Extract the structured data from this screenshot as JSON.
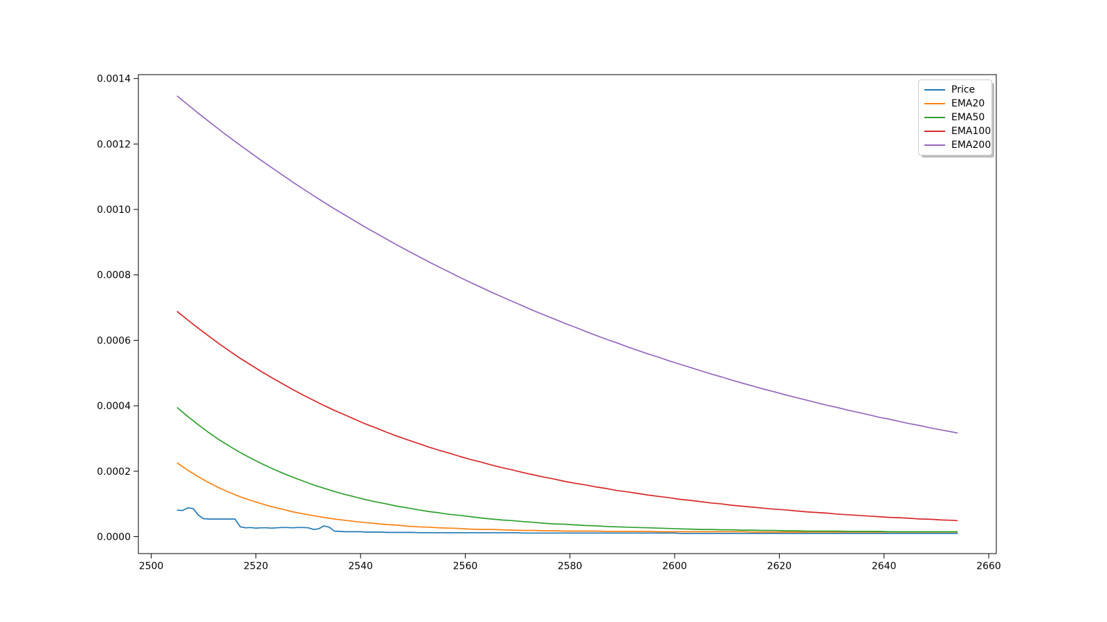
{
  "figure": {
    "background": "#ffffff"
  },
  "chart_data": {
    "type": "line",
    "title": "",
    "xlabel": "",
    "ylabel": "",
    "grid": false,
    "xlim": [
      2497.55,
      2661.45
    ],
    "ylim": [
      -5.17e-05,
      0.0014119
    ],
    "x_tick_values": [
      2500,
      2520,
      2540,
      2560,
      2580,
      2600,
      2620,
      2640,
      2660
    ],
    "x_tick_labels": [
      "2500",
      "2520",
      "2540",
      "2560",
      "2580",
      "2600",
      "2620",
      "2640",
      "2660"
    ],
    "y_tick_values": [
      0.0,
      0.0002,
      0.0004,
      0.0006,
      0.0008,
      0.001,
      0.0012,
      0.0014
    ],
    "y_tick_labels": [
      "0.0000",
      "0.0002",
      "0.0004",
      "0.0006",
      "0.0008",
      "0.0010",
      "0.0012",
      "0.0014"
    ],
    "legend": {
      "position": "upper right",
      "entries": [
        "Price",
        "EMA20",
        "EMA50",
        "EMA100",
        "EMA200"
      ]
    },
    "y_scale": 1e-06,
    "series": [
      {
        "name": "Price",
        "color": "#1f77b4",
        "x": [
          2505,
          2506,
          2507,
          2508,
          2509,
          2510,
          2511,
          2512,
          2513,
          2514,
          2515,
          2516,
          2517,
          2518,
          2519,
          2520,
          2521,
          2522,
          2523,
          2524,
          2525,
          2526,
          2527,
          2528,
          2529,
          2530,
          2531,
          2532,
          2533,
          2534,
          2535,
          2536,
          2537,
          2538,
          2539,
          2540,
          2541,
          2542,
          2543,
          2544,
          2545,
          2546,
          2547,
          2548,
          2549,
          2550,
          2551,
          2552,
          2553,
          2554,
          2555,
          2556,
          2557,
          2558,
          2559,
          2560,
          2561,
          2562,
          2563,
          2564,
          2565,
          2566,
          2567,
          2568,
          2569,
          2570,
          2571,
          2572,
          2573,
          2574,
          2575,
          2576,
          2577,
          2578,
          2579,
          2580,
          2581,
          2582,
          2583,
          2584,
          2585,
          2586,
          2587,
          2588,
          2589,
          2590,
          2591,
          2592,
          2593,
          2594,
          2595,
          2596,
          2597,
          2598,
          2599,
          2600,
          2601,
          2602,
          2603,
          2604,
          2605,
          2606,
          2607,
          2608,
          2609,
          2610,
          2611,
          2612,
          2613,
          2614,
          2615,
          2616,
          2617,
          2618,
          2619,
          2620,
          2621,
          2622,
          2623,
          2624,
          2625,
          2626,
          2627,
          2628,
          2629,
          2630,
          2631,
          2632,
          2633,
          2634,
          2635,
          2636,
          2637,
          2638,
          2639,
          2640,
          2641,
          2642,
          2643,
          2644,
          2645,
          2646,
          2647,
          2648,
          2649,
          2650,
          2651,
          2652,
          2653,
          2654
        ],
        "values_micro": [
          81,
          80,
          88,
          86,
          66,
          55,
          54,
          54,
          54,
          54,
          54,
          54,
          30,
          27,
          28,
          26,
          27,
          27,
          26,
          27,
          28,
          28,
          27,
          28,
          28,
          27,
          22,
          24,
          33,
          29,
          17,
          16,
          15,
          15,
          15,
          15,
          14,
          14,
          14,
          14,
          13,
          13,
          13,
          13,
          13,
          13,
          12,
          12,
          12,
          12,
          12,
          12,
          12,
          12,
          12,
          12,
          12,
          12,
          12,
          12,
          12,
          12,
          12,
          12,
          12,
          12,
          11,
          11,
          11,
          11,
          11,
          11,
          11,
          11,
          11,
          11,
          11,
          11,
          11,
          11,
          11,
          11,
          11,
          11,
          11,
          11,
          11,
          11,
          11,
          11,
          11,
          11,
          11,
          11,
          11,
          11,
          10,
          10,
          10,
          10,
          10,
          10,
          10,
          10,
          10,
          10,
          10,
          10,
          10,
          10,
          10,
          10,
          10,
          10,
          10,
          10,
          10,
          10,
          10,
          10,
          10,
          10,
          10,
          10,
          10,
          10,
          10,
          10,
          10,
          10,
          10,
          10,
          10,
          10,
          10,
          10,
          10,
          10,
          10,
          10,
          10,
          10,
          10,
          10,
          10,
          10,
          10,
          10,
          10,
          10
        ]
      },
      {
        "name": "EMA20",
        "color": "#ff7f0e",
        "x": [
          2505,
          2507,
          2509,
          2511,
          2513,
          2515,
          2517,
          2519,
          2521,
          2523,
          2525,
          2527,
          2529,
          2531,
          2533,
          2535,
          2537,
          2539,
          2541,
          2543,
          2545,
          2547,
          2549,
          2551,
          2553,
          2555,
          2557,
          2559,
          2561,
          2563,
          2565,
          2567,
          2569,
          2571,
          2573,
          2575,
          2577,
          2579,
          2581,
          2583,
          2585,
          2587,
          2589,
          2591,
          2593,
          2595,
          2597,
          2599,
          2601,
          2603,
          2605,
          2607,
          2609,
          2611,
          2613,
          2615,
          2617,
          2619,
          2621,
          2623,
          2625,
          2627,
          2629,
          2631,
          2633,
          2635,
          2637,
          2639,
          2641,
          2643,
          2645,
          2647,
          2649,
          2651,
          2653,
          2654
        ],
        "values_micro": [
          225,
          203,
          183,
          165,
          149,
          135,
          122,
          111,
          101,
          92,
          84,
          76,
          70,
          64,
          59,
          54,
          50,
          46,
          43,
          40,
          37,
          35,
          32,
          30,
          29,
          27,
          26,
          25,
          23,
          22,
          22,
          21,
          20,
          19,
          19,
          18,
          18,
          17,
          17,
          17,
          17,
          16,
          16,
          16,
          16,
          16,
          15,
          15,
          15,
          15,
          15,
          15,
          15,
          15,
          15,
          14,
          14,
          14,
          14,
          14,
          14,
          14,
          14,
          14,
          14,
          14,
          14,
          14,
          14,
          14,
          14,
          14,
          14,
          14,
          14,
          14
        ]
      },
      {
        "name": "EMA50",
        "color": "#2ca02c",
        "x": [
          2505,
          2507,
          2509,
          2511,
          2513,
          2515,
          2517,
          2519,
          2521,
          2523,
          2525,
          2527,
          2529,
          2531,
          2533,
          2535,
          2537,
          2539,
          2541,
          2543,
          2545,
          2547,
          2549,
          2551,
          2553,
          2555,
          2557,
          2559,
          2561,
          2563,
          2565,
          2567,
          2569,
          2571,
          2573,
          2575,
          2577,
          2579,
          2581,
          2583,
          2585,
          2587,
          2589,
          2591,
          2593,
          2595,
          2597,
          2599,
          2601,
          2603,
          2605,
          2607,
          2609,
          2611,
          2613,
          2615,
          2617,
          2619,
          2621,
          2623,
          2625,
          2627,
          2629,
          2631,
          2633,
          2635,
          2637,
          2639,
          2641,
          2643,
          2645,
          2647,
          2649,
          2651,
          2653,
          2654
        ],
        "values_micro": [
          394,
          367,
          342,
          318,
          296,
          276,
          257,
          240,
          224,
          209,
          195,
          182,
          170,
          158,
          148,
          138,
          129,
          121,
          113,
          106,
          100,
          93,
          88,
          82,
          77,
          73,
          68,
          65,
          61,
          57,
          54,
          51,
          49,
          46,
          44,
          41,
          39,
          38,
          36,
          34,
          33,
          31,
          30,
          29,
          28,
          27,
          26,
          25,
          24,
          23,
          22,
          22,
          21,
          21,
          20,
          20,
          19,
          19,
          18,
          18,
          17,
          17,
          17,
          17,
          16,
          16,
          16,
          16,
          15,
          15,
          15,
          15,
          15,
          15,
          15,
          15
        ]
      },
      {
        "name": "EMA100",
        "color": "#d62728",
        "x": [
          2505,
          2507,
          2509,
          2511,
          2513,
          2515,
          2517,
          2519,
          2521,
          2523,
          2525,
          2527,
          2529,
          2531,
          2533,
          2535,
          2537,
          2539,
          2541,
          2543,
          2545,
          2547,
          2549,
          2551,
          2553,
          2555,
          2557,
          2559,
          2561,
          2563,
          2565,
          2567,
          2569,
          2571,
          2573,
          2575,
          2577,
          2579,
          2581,
          2583,
          2585,
          2587,
          2589,
          2591,
          2593,
          2595,
          2597,
          2599,
          2601,
          2603,
          2605,
          2607,
          2609,
          2611,
          2613,
          2615,
          2617,
          2619,
          2621,
          2623,
          2625,
          2627,
          2629,
          2631,
          2633,
          2635,
          2637,
          2639,
          2641,
          2643,
          2645,
          2647,
          2649,
          2651,
          2653,
          2654
        ],
        "values_micro": [
          688,
          662,
          637,
          613,
          589,
          567,
          545,
          525,
          505,
          486,
          468,
          450,
          433,
          417,
          401,
          386,
          372,
          358,
          344,
          332,
          319,
          307,
          296,
          285,
          274,
          264,
          255,
          245,
          236,
          228,
          219,
          211,
          204,
          196,
          189,
          182,
          176,
          169,
          163,
          158,
          152,
          147,
          141,
          137,
          132,
          127,
          123,
          119,
          114,
          111,
          107,
          103,
          100,
          96,
          93,
          90,
          87,
          84,
          82,
          79,
          76,
          74,
          72,
          69,
          67,
          65,
          63,
          61,
          59,
          58,
          56,
          54,
          53,
          51,
          50,
          49
        ]
      },
      {
        "name": "EMA200",
        "color": "#9467bd",
        "x": [
          2505,
          2507,
          2509,
          2511,
          2513,
          2515,
          2517,
          2519,
          2521,
          2523,
          2525,
          2527,
          2529,
          2531,
          2533,
          2535,
          2537,
          2539,
          2541,
          2543,
          2545,
          2547,
          2549,
          2551,
          2553,
          2555,
          2557,
          2559,
          2561,
          2563,
          2565,
          2567,
          2569,
          2571,
          2573,
          2575,
          2577,
          2579,
          2581,
          2583,
          2585,
          2587,
          2589,
          2591,
          2593,
          2595,
          2597,
          2599,
          2601,
          2603,
          2605,
          2607,
          2609,
          2611,
          2613,
          2615,
          2617,
          2619,
          2621,
          2623,
          2625,
          2627,
          2629,
          2631,
          2633,
          2635,
          2637,
          2639,
          2641,
          2643,
          2645,
          2647,
          2649,
          2651,
          2653,
          2654
        ],
        "values_micro": [
          1346,
          1320,
          1294,
          1269,
          1244,
          1220,
          1196,
          1173,
          1150,
          1128,
          1106,
          1084,
          1063,
          1042,
          1022,
          1002,
          983,
          964,
          945,
          927,
          909,
          891,
          874,
          857,
          840,
          824,
          808,
          792,
          777,
          762,
          747,
          733,
          719,
          705,
          691,
          678,
          665,
          652,
          640,
          627,
          615,
          603,
          592,
          580,
          569,
          558,
          548,
          537,
          527,
          517,
          507,
          497,
          488,
          478,
          469,
          460,
          451,
          443,
          434,
          426,
          418,
          410,
          402,
          395,
          387,
          380,
          373,
          365,
          359,
          352,
          345,
          339,
          332,
          326,
          320,
          317
        ]
      }
    ]
  }
}
